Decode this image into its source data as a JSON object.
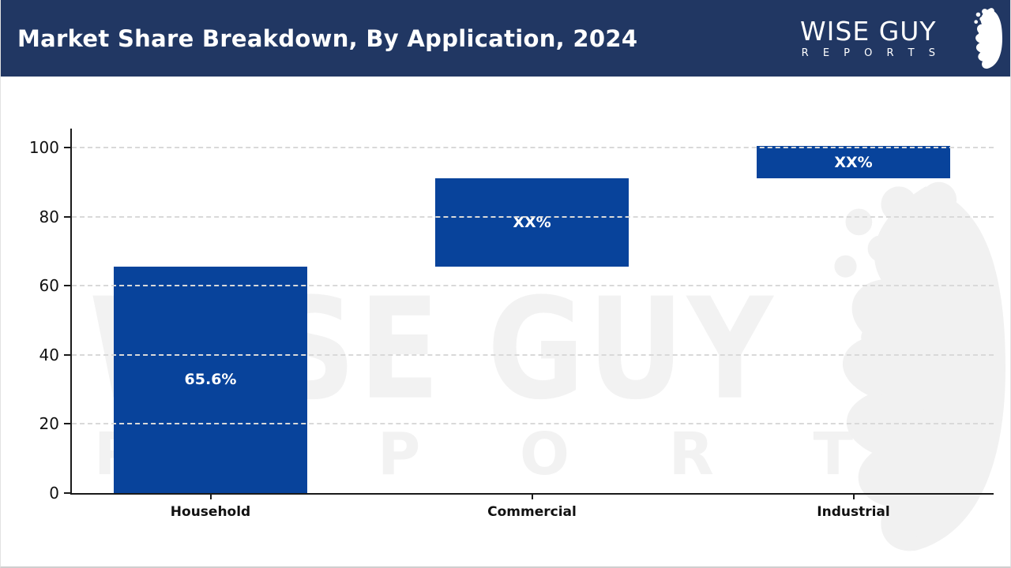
{
  "header": {
    "title": "Market Share Breakdown, By Application, 2024",
    "logo": {
      "line1": "WISE GUY",
      "line2": "R E P O R T S"
    }
  },
  "watermark": {
    "line1": "WISE GUY",
    "line2": "R E P O R T S"
  },
  "colors": {
    "header_bg": "#213763",
    "bar": "#08439b",
    "grid": "#d9d9d9",
    "axis": "#1a1a1a",
    "bar_label": "#ffffff",
    "watermark": "#f2f2f2"
  },
  "chart_data": {
    "type": "bar",
    "subtype": "floating-waterfall-segments",
    "title": "Market Share Breakdown, By Application, 2024",
    "categories": [
      "Household",
      "Commercial",
      "Industrial"
    ],
    "bars": [
      {
        "category": "Household",
        "start": 0,
        "end": 65.6,
        "label": "65.6%"
      },
      {
        "category": "Commercial",
        "start": 65.6,
        "end": 91.0,
        "label": "XX%"
      },
      {
        "category": "Industrial",
        "start": 91.0,
        "end": 100.4,
        "label": "XX%"
      }
    ],
    "yticks": [
      0,
      20,
      40,
      60,
      80,
      100
    ],
    "ylim": [
      0,
      105.5
    ],
    "xlabel": "",
    "ylabel": "",
    "grid": "horizontal-dashed",
    "legend": "none",
    "bar_color": "#08439b",
    "label_color": "#ffffff"
  }
}
